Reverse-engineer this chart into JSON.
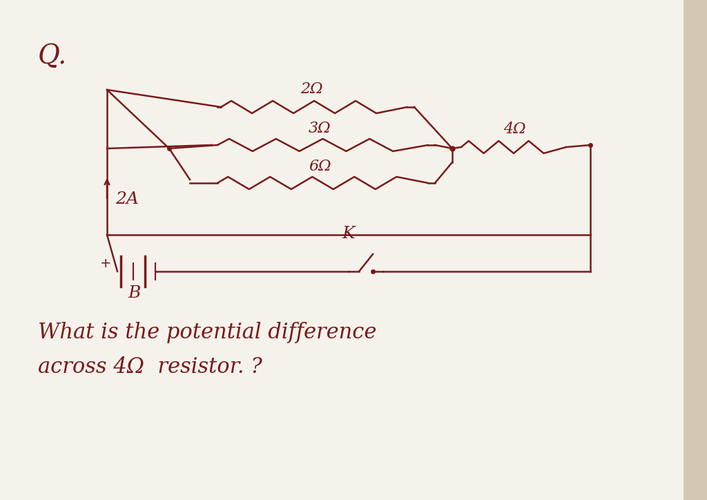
{
  "bg_color": "#f0ece4",
  "paper_color": "#f5f2ec",
  "ink_color": "#7a1a1a",
  "title": "Q.",
  "question_line1": "What is the potential difference",
  "question_line2": "across 4Ω  resistor. ?",
  "label_2A": "2A",
  "label_B": "B",
  "label_K": "K",
  "res_labels": [
    "2Ω",
    "3Ω",
    "6Ω",
    "4Ω"
  ],
  "font_size_title": 28,
  "font_size_labels": 18,
  "font_size_res": 16,
  "font_size_question": 22
}
